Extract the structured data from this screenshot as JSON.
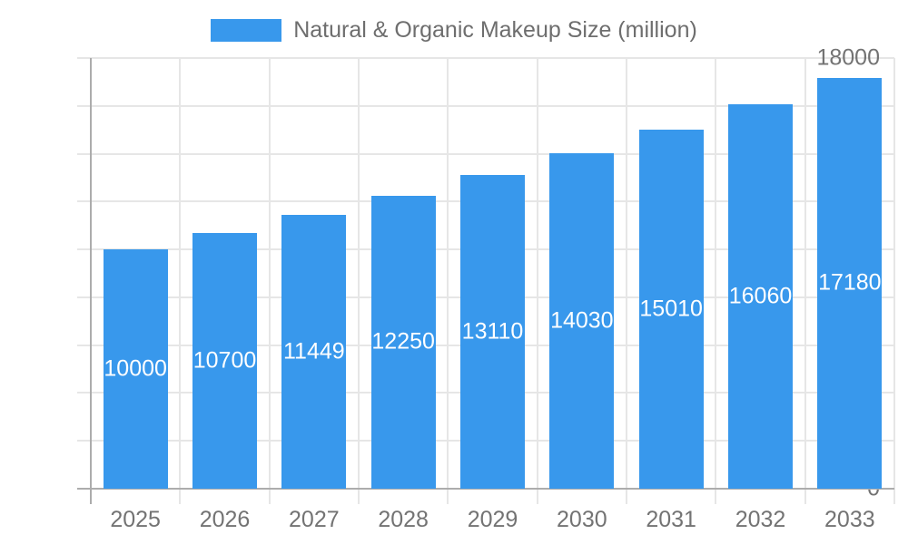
{
  "chart_data": {
    "type": "bar",
    "title": "Natural & Organic Makeup Size (million)",
    "categories": [
      "2025",
      "2026",
      "2027",
      "2028",
      "2029",
      "2030",
      "2031",
      "2032",
      "2033"
    ],
    "values": [
      10000,
      10700,
      11449,
      12250,
      13110,
      14030,
      15010,
      16060,
      17180
    ],
    "value_labels": [
      "10000",
      "10700",
      "11449",
      "12250",
      "13110",
      "14030",
      "15010",
      "16060",
      "17180"
    ],
    "ylim": [
      0,
      18000
    ],
    "ytick_step": 2000,
    "yticks": [
      "0",
      "2000",
      "4000",
      "6000",
      "8000",
      "10000",
      "12000",
      "14000",
      "16000",
      "18000"
    ],
    "xlabel": "",
    "ylabel": "",
    "legend_position": "top",
    "grid": true,
    "colors": {
      "bar": "#3898ec",
      "value_label": "#ffffff",
      "tick_label": "#737373",
      "legend_text": "#6e6e6e",
      "grid": "#e6e6e6",
      "axis_line": "#acacac"
    }
  }
}
